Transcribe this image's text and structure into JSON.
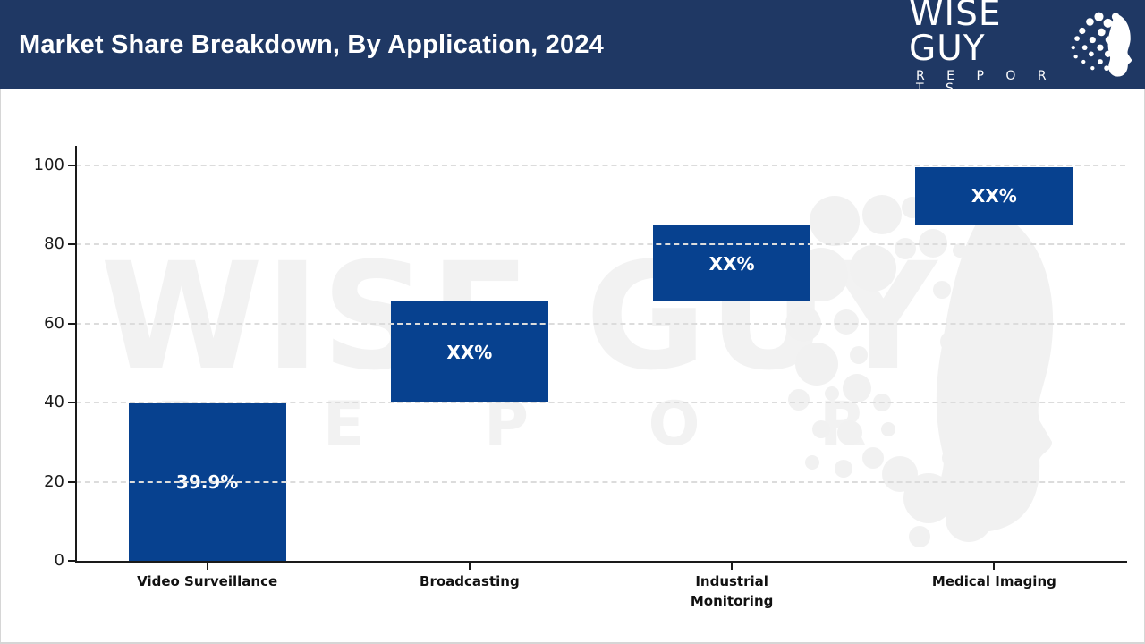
{
  "header": {
    "title": "Market Share Breakdown, By Application, 2024",
    "logo": {
      "line1": "WISE GUY",
      "line2": "REPORTS"
    }
  },
  "watermark": {
    "line1": "WISE GUY",
    "line2": "REPORTS"
  },
  "colors": {
    "header_bg": "#1f3864",
    "bar": "#07418f",
    "grid": "#dcdcdc",
    "axis": "#1a1a1a",
    "bar_label_text": "#ffffff",
    "watermark": "#f2f2f2"
  },
  "chart_data": {
    "type": "bar",
    "variant": "floating stacked breakdown (each bar starts where previous ends)",
    "title": "Market Share Breakdown, By Application, 2024",
    "categories": [
      "Video Surveillance",
      "Broadcasting",
      "Industrial Monitoring",
      "Medical Imaging"
    ],
    "segments": [
      {
        "category": "Video Surveillance",
        "from": 0,
        "to": 39.9,
        "label": "39.9%"
      },
      {
        "category": "Broadcasting",
        "from": 40.0,
        "to": 65.6,
        "label": "XX%"
      },
      {
        "category": "Industrial Monitoring",
        "from": 65.6,
        "to": 84.8,
        "label": "XX%"
      },
      {
        "category": "Medical Imaging",
        "from": 84.8,
        "to": 99.6,
        "label": "XX%"
      }
    ],
    "yticks": [
      0,
      20,
      40,
      60,
      80,
      100
    ],
    "ylim": [
      0,
      105
    ],
    "xlabel": "",
    "ylabel": "",
    "grid": "horizontal dashed",
    "legend": "none"
  }
}
